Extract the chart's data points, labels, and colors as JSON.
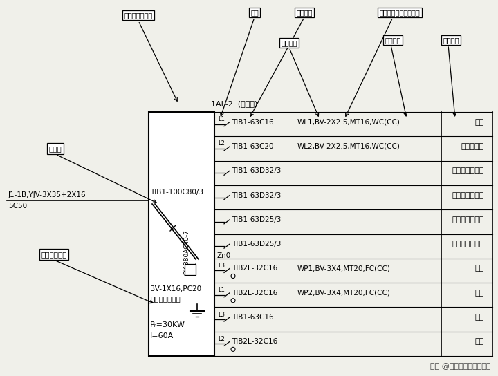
{
  "bg_color": "#f0f0ea",
  "fig_width": 7.2,
  "fig_height": 5.44,
  "dpi": 100,
  "panel_label": "1AL-2  (行卫室)",
  "cable_in_line1": "J1-1B,YJV-3X35+2X16",
  "cable_in_line2": "5C50",
  "main_breaker": "TIB1-100C80/3",
  "surge_line1": "BV-1X16,PC20",
  "surge_line2": "就近接接地装置",
  "dk_label": "DK-380AC40-7",
  "zn0_label": "Zn0",
  "calc_line1": "Pᵣ=30KW",
  "calc_line2": "I=60A",
  "box_labels": [
    "照明配电笱编号",
    "相序",
    "开关型号",
    "导线型号、根数、截面",
    "回路编号",
    "穿管型号",
    "敷设方式",
    "避雷器",
    "计算负荷参数"
  ],
  "circuits": [
    {
      "phase": "L1",
      "breaker": "TIB1-63C16",
      "cable": "WL1,BV-2X2.5,MT16,WC(CC)",
      "load": "照明",
      "has_open": false
    },
    {
      "phase": "L2",
      "breaker": "TIB1-63C20",
      "cable": "WL2,BV-2X2.5,MT16,WC(CC)",
      "load": "外行灯照明",
      "has_open": false
    },
    {
      "phase": "",
      "breaker": "TIB1-63D32/3",
      "cable": "",
      "load": "预留迎光照明灯",
      "has_open": false
    },
    {
      "phase": "",
      "breaker": "TIB1-63D32/3",
      "cable": "",
      "load": "预留迎光照明灯",
      "has_open": false
    },
    {
      "phase": "",
      "breaker": "TIB1-63D25/3",
      "cable": "",
      "load": "预留迎光照明灯",
      "has_open": false
    },
    {
      "phase": "",
      "breaker": "TIB1-63D25/3",
      "cable": "",
      "load": "预留迎光照明灯",
      "has_open": false
    },
    {
      "phase": "L3",
      "breaker": "TIB2L-32C16",
      "cable": "WP1,BV-3X4,MT20,FC(CC)",
      "load": "插座",
      "has_open": true
    },
    {
      "phase": "L1",
      "breaker": "TIB2L-32C16",
      "cable": "WP2,BV-3X4,MT20,FC(CC)",
      "load": "插座",
      "has_open": true
    },
    {
      "phase": "L3",
      "breaker": "TIB1-63C16",
      "cable": "",
      "load": "备用",
      "has_open": false
    },
    {
      "phase": "L2",
      "breaker": "TIB2L-32C16",
      "cable": "",
      "load": "备用",
      "has_open": true
    }
  ],
  "watermark": "头条 @智能化弱电工程分享"
}
